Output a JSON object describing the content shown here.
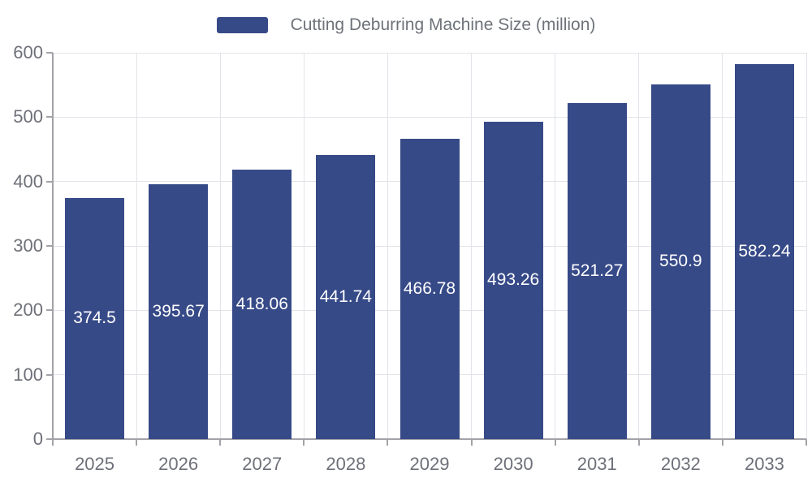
{
  "legend": {
    "label": "Cutting Deburring Machine Size (million)"
  },
  "chart_data": {
    "type": "bar",
    "title": "Cutting Deburring Machine Size (million)",
    "series_name": "Cutting Deburring Machine Size (million)",
    "categories": [
      "2025",
      "2026",
      "2027",
      "2028",
      "2029",
      "2030",
      "2031",
      "2032",
      "2033"
    ],
    "values": [
      374.5,
      395.67,
      418.06,
      441.74,
      466.78,
      493.26,
      521.27,
      550.9,
      582.24
    ],
    "value_labels": [
      "374.5",
      "395.67",
      "418.06",
      "441.74",
      "466.78",
      "493.26",
      "521.27",
      "550.9",
      "582.24"
    ],
    "xlabel": "",
    "ylabel": "",
    "ylim": [
      0,
      600
    ],
    "y_ticks": [
      0,
      100,
      200,
      300,
      400,
      500,
      600
    ],
    "grid": true,
    "legend_position": "top-center",
    "colors": {
      "bar": "#374a88",
      "value_label": "#ffffff",
      "axis_label": "#6e7079",
      "legend_text": "#6e737a",
      "axis_line": "#a2a2a8",
      "gridline": "#e2e4ea",
      "background": "#ffffff"
    }
  }
}
